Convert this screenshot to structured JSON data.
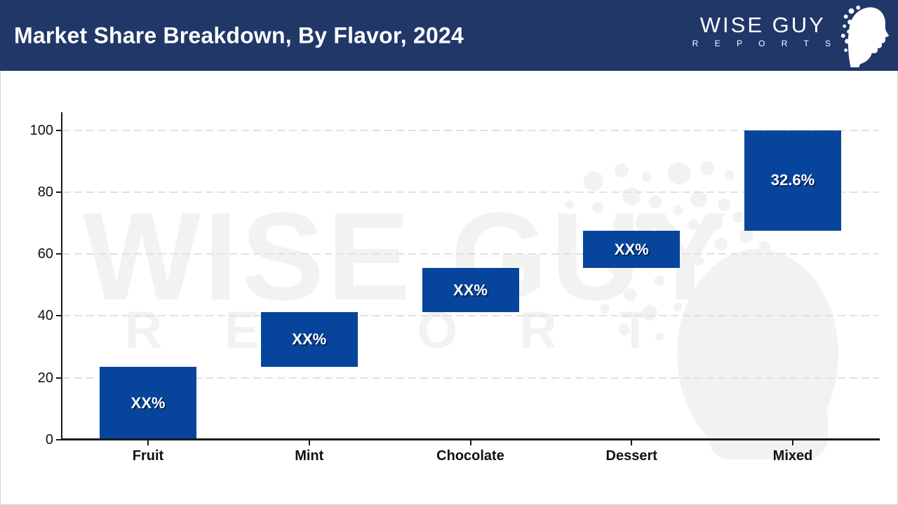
{
  "header": {
    "title": "Market Share Breakdown, By Flavor, 2024",
    "logo": {
      "name": "WISE GUY",
      "tagline": "R E P O R T S"
    }
  },
  "watermark": {
    "line1": "WISE GUY",
    "line2": "R E P O R T S"
  },
  "chart_data": {
    "type": "bar",
    "subtype": "waterfall",
    "title": "Market Share Breakdown, By Flavor, 2024",
    "unit": "%",
    "categories": [
      "Fruit",
      "Mint",
      "Chocolate",
      "Dessert",
      "Mixed"
    ],
    "bars": [
      {
        "category": "Fruit",
        "start": 0,
        "end": 23.5,
        "label": "XX%"
      },
      {
        "category": "Mint",
        "start": 23.5,
        "end": 41.2,
        "label": "XX%"
      },
      {
        "category": "Chocolate",
        "start": 41.2,
        "end": 55.4,
        "label": "XX%"
      },
      {
        "category": "Dessert",
        "start": 55.4,
        "end": 67.4,
        "label": "XX%"
      },
      {
        "category": "Mixed",
        "start": 67.4,
        "end": 100,
        "label": "32.6%"
      }
    ],
    "yticks": [
      0,
      20,
      40,
      60,
      80,
      100
    ],
    "ylim": [
      0,
      105
    ],
    "grid": "horizontal-dashed",
    "legend": false,
    "bar_color": "#06459b",
    "value_label_color": "#ffffff"
  },
  "colors": {
    "header_bg": "#203768",
    "bar": "#06459b",
    "grid": "#e1e1e1",
    "axis": "#1a1a1a",
    "watermark": "#f2f2f2",
    "page_bg": "#ffffff"
  }
}
